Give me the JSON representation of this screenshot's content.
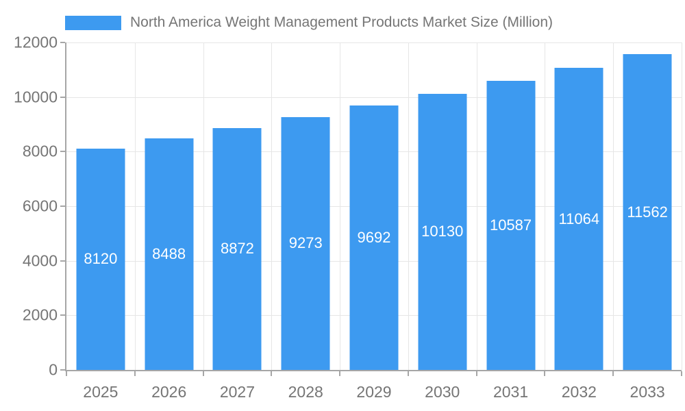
{
  "legend": {
    "label": "North America Weight Management Products Market Size (Million)"
  },
  "chart_data": {
    "type": "bar",
    "title": "",
    "legend_label": "North America Weight Management Products Market Size (Million)",
    "legend_position": "top-left",
    "categories": [
      "2025",
      "2026",
      "2027",
      "2028",
      "2029",
      "2030",
      "2031",
      "2032",
      "2033"
    ],
    "values": [
      8120,
      8488,
      8872,
      9273,
      9692,
      10130,
      10587,
      11064,
      11562
    ],
    "xlabel": "",
    "ylabel": "",
    "ylim": [
      0,
      12000
    ],
    "yticks": [
      0,
      2000,
      4000,
      6000,
      8000,
      10000,
      12000
    ],
    "grid": true,
    "value_labels": "inside-center",
    "colors": {
      "bar": "#3D9AF0",
      "bar_label": "#FFFFFF",
      "axis_text": "#757575",
      "grid_line": "#E6E6E6",
      "axis_line": "#A6A6A6",
      "background": "#FFFFFF"
    }
  }
}
